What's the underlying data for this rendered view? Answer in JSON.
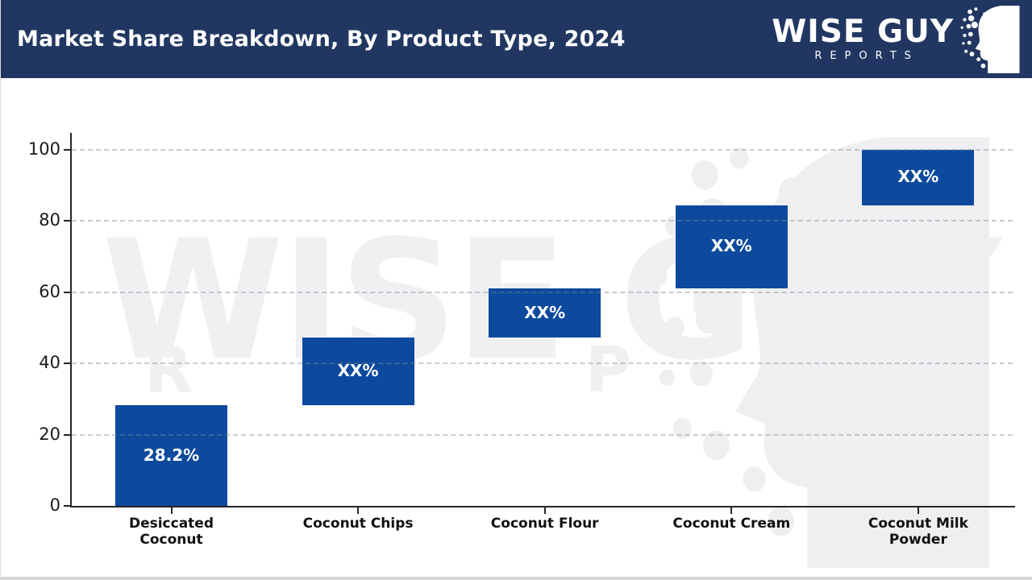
{
  "header": {
    "title": "Market Share Breakdown, By Product Type, 2024",
    "logo": {
      "line1": "WISE GUY",
      "line2": "REPORTS"
    }
  },
  "watermark": {
    "line1": "WISE GUY",
    "line2": "REPORTS"
  },
  "chart_data": {
    "type": "bar",
    "subtype": "floating-waterfall",
    "title": "Market Share Breakdown, By Product Type, 2024",
    "categories": [
      "Desiccated Coconut",
      "Coconut Chips",
      "Coconut Flour",
      "Coconut Cream",
      "Coconut Milk Powder"
    ],
    "segments": [
      {
        "category": "Desiccated Coconut",
        "start": 0,
        "end": 28.2,
        "label": "28.2%"
      },
      {
        "category": "Coconut Chips",
        "start": 28.2,
        "end": 47.3,
        "label": "XX%"
      },
      {
        "category": "Coconut Flour",
        "start": 47.3,
        "end": 61.0,
        "label": "XX%"
      },
      {
        "category": "Coconut Cream",
        "start": 61.0,
        "end": 84.5,
        "label": "XX%"
      },
      {
        "category": "Coconut Milk Powder",
        "start": 84.5,
        "end": 100,
        "label": "XX%"
      }
    ],
    "ylim": [
      0,
      100
    ],
    "yticks": [
      0,
      20,
      40,
      60,
      80,
      100
    ],
    "xlabel": "",
    "ylabel": "",
    "grid": "horizontal-dashed-over-bars",
    "legend": "none",
    "bar_color": "#0d4a9e",
    "bar_label_color": "#ffffff"
  },
  "colors": {
    "header_bg": "#213761",
    "bar": "#0d4a9e",
    "grid": "#c9cdd4",
    "axis": "#262626",
    "watermark": "#f0f0f2",
    "footer_strip": "#d6d6d6"
  }
}
